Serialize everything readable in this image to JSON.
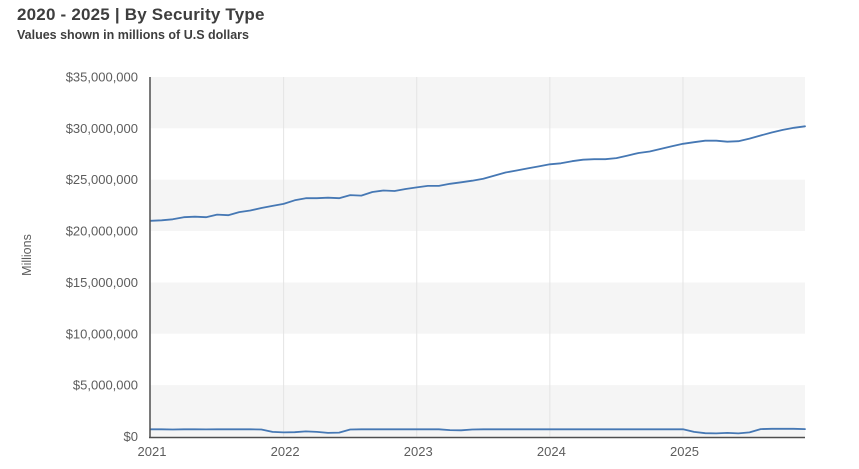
{
  "header": {
    "title": "2020 - 2025 | By Security Type",
    "subtitle": "Values shown in millions of U.S dollars"
  },
  "chart_data": {
    "type": "line",
    "title": "2020 - 2025 | By Security Type",
    "subtitle": "Values shown in millions of U.S dollars",
    "xlabel": "",
    "ylabel": "Millions",
    "ylim": [
      0,
      35000000
    ],
    "y_ticks": [
      "$35,000,000",
      "$30,000,000",
      "$25,000,000",
      "$20,000,000",
      "$15,000,000",
      "$10,000,000",
      "$5,000,000",
      "$0"
    ],
    "x_ticks": [
      "2021",
      "2022",
      "2023",
      "2024",
      "2025"
    ],
    "x_interval": "monthly, Jan 2021 - Dec 2025",
    "legend_position": "none",
    "grid": "alternating horizontal shaded bands every $5,000,000; vertical gridlines at each year",
    "series": [
      {
        "name": "series-1",
        "color": "#4678b4",
        "unit": "millions of USD",
        "values": [
          21.0,
          21.05,
          21.15,
          21.35,
          21.4,
          21.35,
          21.6,
          21.55,
          21.85,
          22.0,
          22.25,
          22.45,
          22.65,
          23.0,
          23.2,
          23.2,
          23.25,
          23.2,
          23.5,
          23.45,
          23.8,
          23.95,
          23.9,
          24.1,
          24.25,
          24.4,
          24.4,
          24.6,
          24.75,
          24.9,
          25.1,
          25.4,
          25.7,
          25.9,
          26.1,
          26.3,
          26.5,
          26.6,
          26.8,
          26.95,
          27.0,
          27.0,
          27.1,
          27.35,
          27.6,
          27.75,
          28.0,
          28.25,
          28.5,
          28.65,
          28.8,
          28.8,
          28.7,
          28.75,
          29.0,
          29.3,
          29.6,
          29.85,
          30.05,
          30.2
        ]
      },
      {
        "name": "series-2",
        "color": "#4678b4",
        "unit": "millions of USD",
        "values": [
          0.7,
          0.7,
          0.68,
          0.7,
          0.7,
          0.69,
          0.7,
          0.7,
          0.7,
          0.7,
          0.68,
          0.45,
          0.4,
          0.42,
          0.5,
          0.45,
          0.35,
          0.38,
          0.68,
          0.7,
          0.7,
          0.7,
          0.7,
          0.7,
          0.7,
          0.7,
          0.7,
          0.62,
          0.6,
          0.68,
          0.7,
          0.7,
          0.7,
          0.7,
          0.7,
          0.7,
          0.7,
          0.7,
          0.7,
          0.7,
          0.7,
          0.7,
          0.7,
          0.7,
          0.7,
          0.7,
          0.7,
          0.7,
          0.7,
          0.45,
          0.32,
          0.3,
          0.35,
          0.3,
          0.4,
          0.72,
          0.75,
          0.75,
          0.75,
          0.72
        ]
      }
    ]
  },
  "colors": {
    "title_text": "#3e3e3e",
    "tick_text": "#5d5d5d",
    "band_shade": "#f5f5f5",
    "vertical_gridline": "#e4e4e4",
    "axis_line": "#4f4f4f",
    "line_blue": "#4678b4",
    "background": "#ffffff"
  }
}
